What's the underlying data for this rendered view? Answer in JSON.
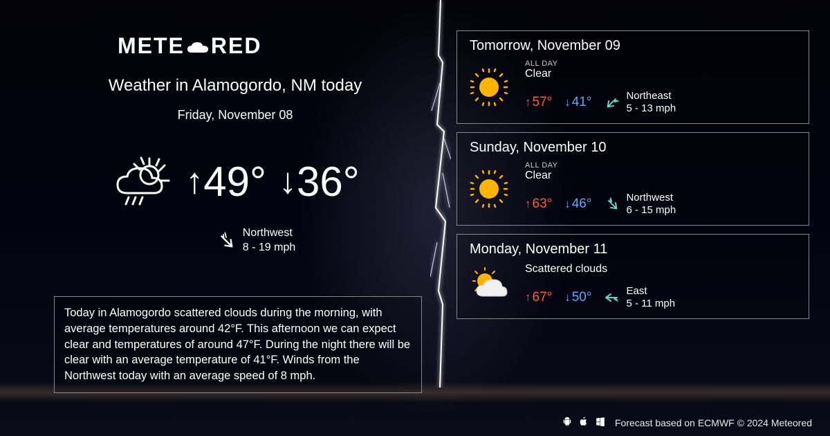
{
  "brand": "METEORED",
  "title": "Weather in Alamogordo, NM today",
  "date": "Friday, November 08",
  "today": {
    "high": "49°",
    "low": "36°",
    "wind_dir": "Northwest",
    "wind_speed": "8 - 19 mph",
    "wind_arrow_rotation": 135,
    "icon": "rain-sun-cloud"
  },
  "summary": "Today in Alamogordo scattered clouds during the morning, with average temperatures around 42°F. This afternoon we can expect clear and temperatures of around 47°F. During the night there will be clear with an average temperature of 41°F. Winds from the Northwest today with an average speed of 8 mph.",
  "forecast": [
    {
      "title": "Tomorrow, November 09",
      "period": "ALL DAY",
      "condition": "Clear",
      "icon": "sun",
      "high": "57°",
      "low": "41°",
      "wind_dir": "Northeast",
      "wind_speed": "5 - 13 mph",
      "wind_color": "#5fd8c8",
      "wind_arrow_rotation": 225
    },
    {
      "title": "Sunday, November 10",
      "period": "ALL DAY",
      "condition": "Clear",
      "icon": "sun",
      "high": "63°",
      "low": "46°",
      "wind_dir": "Northwest",
      "wind_speed": "6 - 15 mph",
      "wind_color": "#5fd8c8",
      "wind_arrow_rotation": 135
    },
    {
      "title": "Monday, November 11",
      "period": "",
      "condition": "Scattered clouds",
      "icon": "partly-cloudy",
      "high": "67°",
      "low": "50°",
      "wind_dir": "East",
      "wind_speed": "5 - 11 mph",
      "wind_color": "#5fd8c8",
      "wind_arrow_rotation": 270
    }
  ],
  "footer": "Forecast based on ECMWF © 2024 Meteored",
  "colors": {
    "high": "#ff5a3c",
    "low": "#5aa8ff",
    "sun": "#ffb400",
    "text": "#ffffff",
    "border": "#888888"
  }
}
